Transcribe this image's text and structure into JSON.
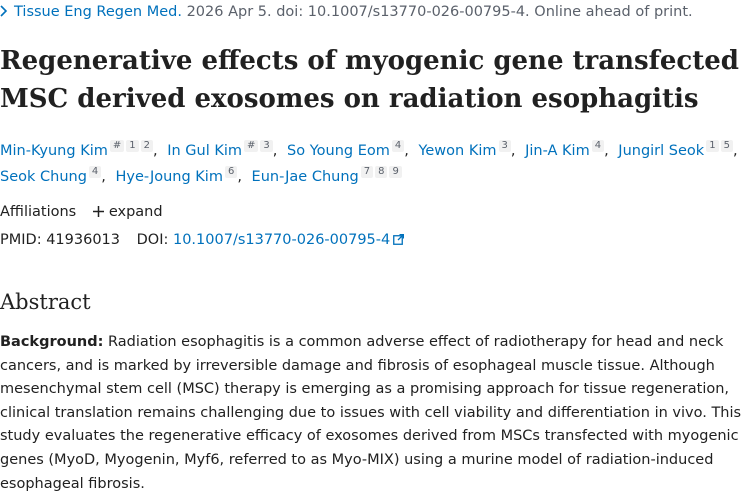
{
  "citation": {
    "journal": "Tissue Eng Regen Med.",
    "details": "2026 Apr 5. doi: 10.1007/s13770-026-00795-4. Online ahead of print."
  },
  "title": "Regenerative effects of myogenic gene transfected MSC derived exosomes on radiation esophagitis",
  "authors": [
    {
      "name": "Min-Kyung Kim",
      "marks": [
        "#",
        "1",
        "2"
      ]
    },
    {
      "name": "In Gul Kim",
      "marks": [
        "#",
        "3"
      ]
    },
    {
      "name": "So Young Eom",
      "marks": [
        "4"
      ]
    },
    {
      "name": "Yewon Kim",
      "marks": [
        "3"
      ]
    },
    {
      "name": "Jin-A Kim",
      "marks": [
        "4"
      ]
    },
    {
      "name": "Jungirl Seok",
      "marks": [
        "1",
        "5"
      ]
    },
    {
      "name": "Seok Chung",
      "marks": [
        "4"
      ]
    },
    {
      "name": "Hye-Joung Kim",
      "marks": [
        "6"
      ]
    },
    {
      "name": "Eun-Jae Chung",
      "marks": [
        "7",
        "8",
        "9"
      ]
    }
  ],
  "affiliations": {
    "label": "Affiliations",
    "toggle": "expand"
  },
  "identifiers": {
    "pmid_label": "PMID:",
    "pmid": "41936013",
    "doi_label": "DOI:",
    "doi": "10.1007/s13770-026-00795-4"
  },
  "abstract": {
    "heading": "Abstract",
    "background_label": "Background:",
    "background": "Radiation esophagitis is a common adverse effect of radiotherapy for head and neck cancers, and is marked by irreversible damage and fibrosis of esophageal muscle tissue. Although mesenchymal stem cell (MSC) therapy is emerging as a promising approach for tissue regeneration, clinical translation remains challenging due to issues with cell viability and differentiation in vivo. This study evaluates the regenerative efficacy of exosomes derived from MSCs transfected with myogenic genes (MyoD, Myogenin, Myf6, referred to as Myo-MIX) using a murine model of radiation-induced esophageal fibrosis."
  }
}
